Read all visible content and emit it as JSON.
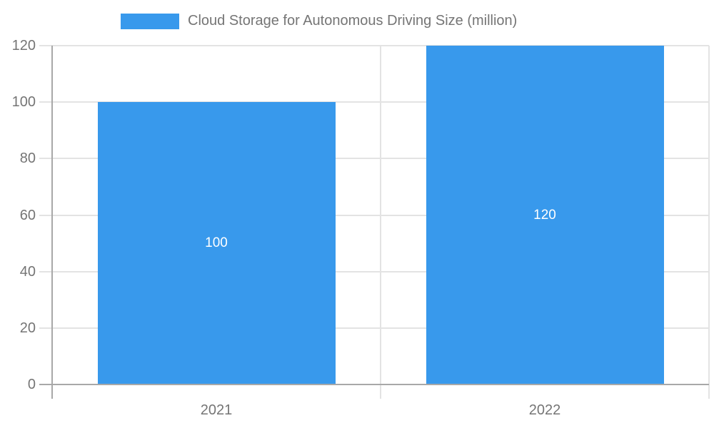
{
  "legend": {
    "label": "Cloud Storage for Autonomous Driving Size (million)"
  },
  "chart_data": {
    "type": "bar",
    "title": "Cloud Storage for Autonomous Driving Size (million)",
    "categories": [
      "2021",
      "2022"
    ],
    "values": [
      100,
      120
    ],
    "bar_labels": [
      "100",
      "120"
    ],
    "xlabel": "",
    "ylabel": "",
    "ylim": [
      0,
      120
    ],
    "yticks": [
      0,
      20,
      40,
      60,
      80,
      100,
      120
    ],
    "grid": true,
    "legend_position": "top",
    "colors": {
      "bar": "#3899EC",
      "grid": "#e3e3e3",
      "axis": "#a8a8a8",
      "tick_text": "#757575",
      "bar_label_text": "#ffffff"
    }
  }
}
